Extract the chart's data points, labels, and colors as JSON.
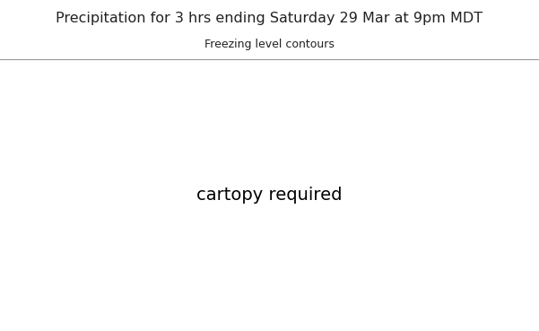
{
  "title": "Precipitation for 3 hrs ending Saturday 29 Mar at 9pm MDT",
  "subtitle": "Freezing level contours",
  "title_fontsize": 11.5,
  "subtitle_fontsize": 9,
  "title_color": "#222222",
  "ocean_color": "#dde3f0",
  "land_color": "#aaaaaa",
  "land_edge_color": "#333333",
  "land_edge_width": 0.3,
  "header_bg": "#ffffff",
  "border_line_color": "#555555",
  "red_line_color": "#dd0000",
  "green_color": "#009900",
  "fig_width": 6.01,
  "fig_height": 3.69,
  "map_extent": [
    -168,
    -60,
    54,
    82
  ],
  "central_longitude": -110,
  "central_latitude": 65
}
